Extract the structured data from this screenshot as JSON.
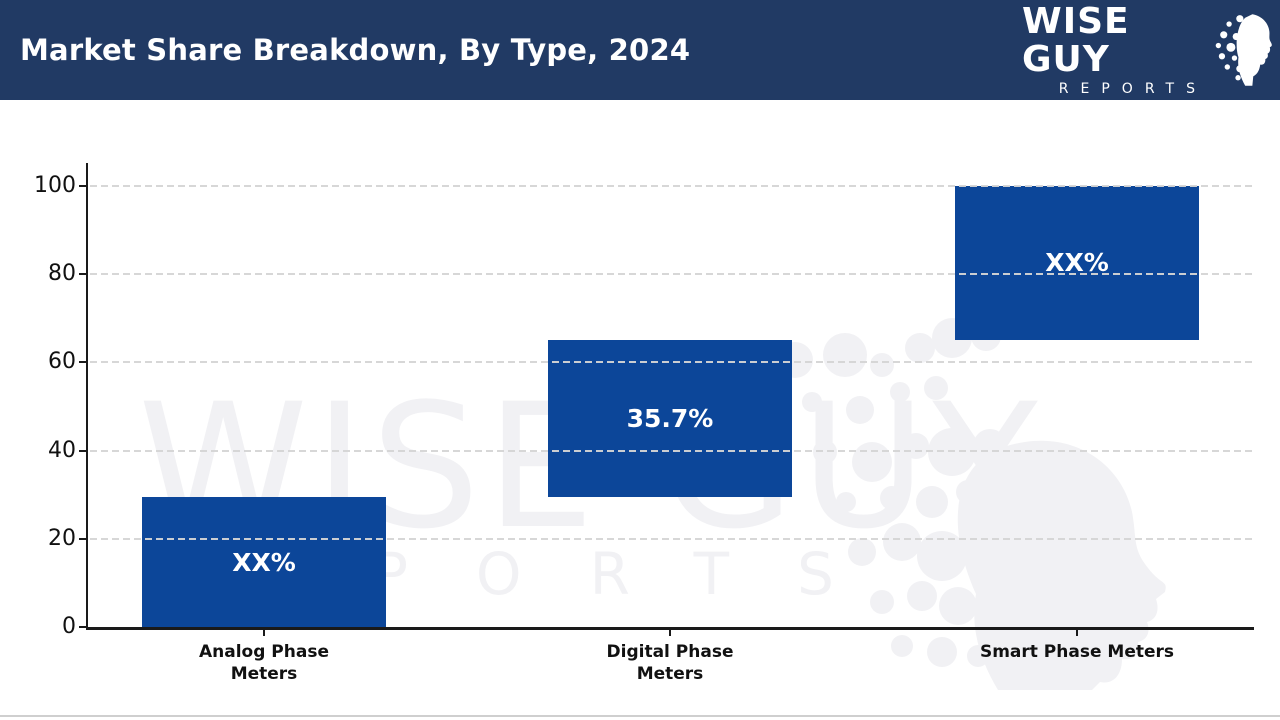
{
  "header": {
    "title": "Market Share Breakdown, By Type, 2024",
    "logo": {
      "line1": "WISE GUY",
      "line2": "REPORTS"
    }
  },
  "watermark": {
    "line1": "WISE GUY",
    "line2": "REPORTS"
  },
  "chart_data": {
    "type": "bar",
    "subtype": "stacked-waterfall-segments",
    "title": "Market Share Breakdown, By Type, 2024",
    "categories": [
      "Analog Phase\nMeters",
      "Digital Phase\nMeters",
      "Smart Phase Meters"
    ],
    "segments": [
      {
        "category": "Analog Phase Meters",
        "start": 0,
        "end": 29.4,
        "label": "XX%"
      },
      {
        "category": "Digital Phase Meters",
        "start": 29.4,
        "end": 65.1,
        "label": "35.7%"
      },
      {
        "category": "Smart Phase Meters",
        "start": 65.1,
        "end": 100,
        "label": "XX%"
      }
    ],
    "xlabel": "",
    "ylabel": "",
    "ylim": [
      0,
      100
    ],
    "yticks": [
      0,
      20,
      40,
      60,
      80,
      100
    ],
    "grid": "horizontal-dashed",
    "legend": "none",
    "bar_color": "#0c4699",
    "bar_label_color": "#ffffff"
  },
  "colors": {
    "header_bg": "#213a64",
    "bar": "#0c4699",
    "axis": "#1a1a1a",
    "grid": "#d5d5d5",
    "watermark": "#f1f1f4"
  }
}
